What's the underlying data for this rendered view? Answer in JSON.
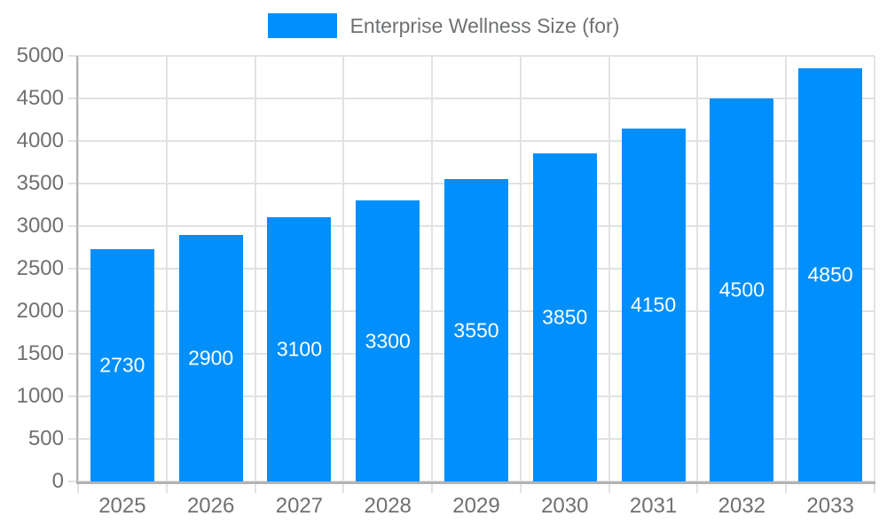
{
  "chart_data": {
    "type": "bar",
    "title": "",
    "xlabel": "",
    "ylabel": "",
    "legend_position": "top",
    "grid": true,
    "categories": [
      "2025",
      "2026",
      "2027",
      "2028",
      "2029",
      "2030",
      "2031",
      "2032",
      "2033"
    ],
    "series": [
      {
        "name": "Enterprise Wellness Size (for)",
        "values": [
          2730,
          2900,
          3100,
          3300,
          3550,
          3850,
          4150,
          4500,
          4850
        ]
      }
    ],
    "ylim": [
      0,
      5000
    ],
    "y_tick_step": 500,
    "y_tick_labels": [
      "0",
      "500",
      "1000",
      "1500",
      "2000",
      "2500",
      "3000",
      "3500",
      "4000",
      "4500",
      "5000"
    ],
    "colors": {
      "bar": "#008FFB",
      "value_label": "#FFFFFF",
      "axis_label": "#707070",
      "legend_label": "#6E7173",
      "grid_line": "#E2E2E2",
      "axis_line": "#B3B3B3",
      "background": "#FFFFFF"
    }
  }
}
